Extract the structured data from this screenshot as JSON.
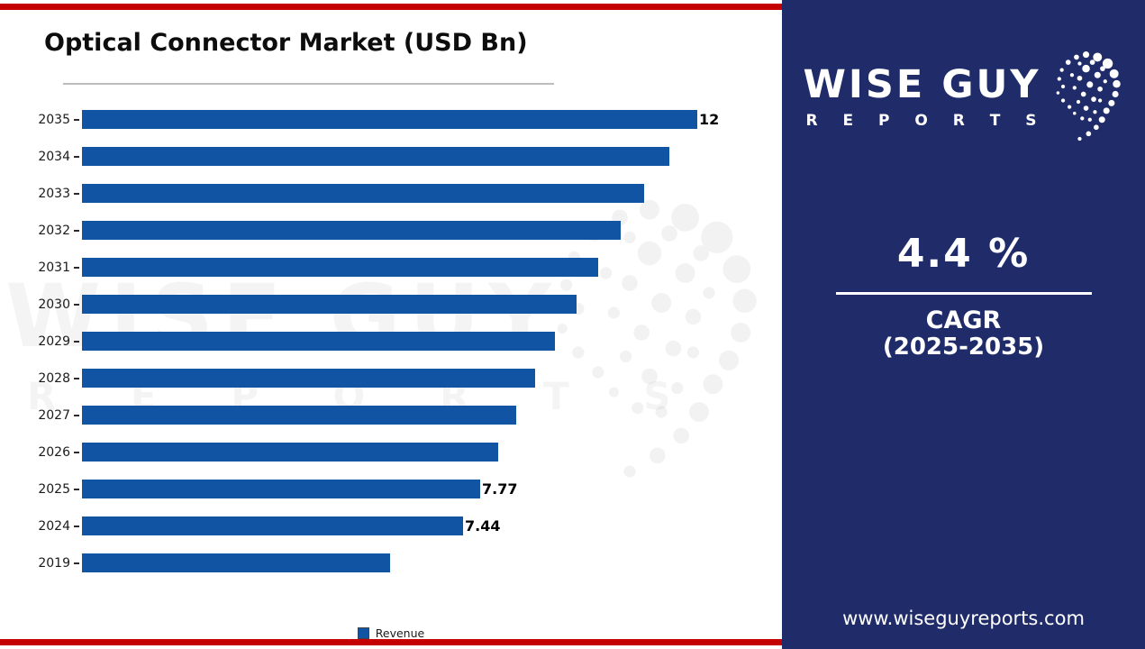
{
  "accent": {
    "red": "#c40000",
    "navy": "#202c6a",
    "bar_blue": "#1254a4"
  },
  "chart_data": {
    "type": "bar",
    "orientation": "horizontal",
    "title": "Optical Connector Market (USD Bn)",
    "categories": [
      "2035",
      "2034",
      "2033",
      "2032",
      "2031",
      "2030",
      "2029",
      "2028",
      "2027",
      "2026",
      "2025",
      "2024",
      "2019"
    ],
    "values": [
      12,
      11.45,
      10.97,
      10.5,
      10.06,
      9.64,
      9.23,
      8.84,
      8.47,
      8.11,
      7.77,
      7.44,
      6.0
    ],
    "data_labels": [
      "12",
      "",
      "",
      "",
      "",
      "",
      "",
      "",
      "",
      "",
      "7.77",
      "7.44",
      ""
    ],
    "xlim": [
      0,
      12
    ],
    "grid": false,
    "xlabel": "",
    "ylabel": "",
    "legend_position": "bottom-center",
    "legend": [
      {
        "label": "Revenue",
        "color": "#1254a4"
      }
    ]
  },
  "watermark": {
    "line1": "WISE GUY",
    "line2": "R E P O R T S"
  },
  "side_panel": {
    "logo_line1": "WISE GUY",
    "logo_line2": "R E P O R T S",
    "cagr_value": "4.4 %",
    "cagr_title": "CAGR",
    "cagr_range": "(2025-2035)",
    "website": "www.wiseguyreports.com"
  }
}
